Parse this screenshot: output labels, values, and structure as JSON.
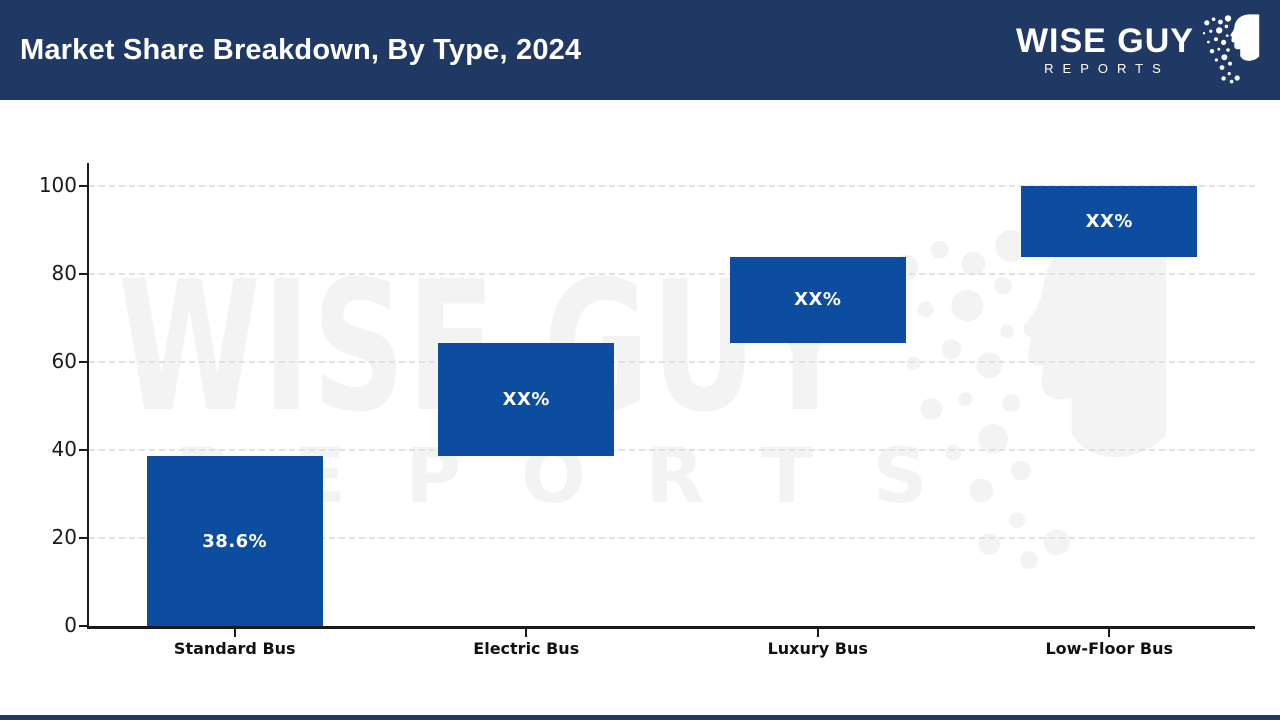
{
  "header": {
    "title": "Market Share Breakdown, By Type, 2024",
    "logo": {
      "line1": "WISE GUY",
      "line2": "REPORTS"
    }
  },
  "watermark": {
    "line1": "WISE GUY",
    "line2": "REPORTS"
  },
  "colors": {
    "header_bg": "#1f3864",
    "footer_bg": "#1f3864",
    "bar": "#0d4da0",
    "bar_label": "#ffffff",
    "watermark": "#f3f3f3",
    "grid": "#e1e1e1",
    "axis": "#1a1a1a"
  },
  "chart_data": {
    "type": "bar",
    "subtype": "waterfall-floating-bars",
    "title": "Market Share Breakdown, By Type, 2024",
    "categories": [
      "Standard Bus",
      "Electric Bus",
      "Luxury Bus",
      "Low-Floor Bus"
    ],
    "series": [
      {
        "name": "Market share (%)",
        "segments": [
          {
            "category": "Standard Bus",
            "start": 0,
            "end": 38.6,
            "label": "38.6%"
          },
          {
            "category": "Electric Bus",
            "start": 38.6,
            "end": 64.3,
            "label": "XX%"
          },
          {
            "category": "Luxury Bus",
            "start": 64.3,
            "end": 83.9,
            "label": "XX%"
          },
          {
            "category": "Low-Floor Bus",
            "start": 83.9,
            "end": 100,
            "label": "XX%"
          }
        ]
      }
    ],
    "xlabel": "",
    "ylabel": "",
    "ylim": [
      0,
      100
    ],
    "yticks": [
      0,
      20,
      40,
      60,
      80,
      100
    ],
    "grid": "horizontal-dashed",
    "legend": "none"
  }
}
